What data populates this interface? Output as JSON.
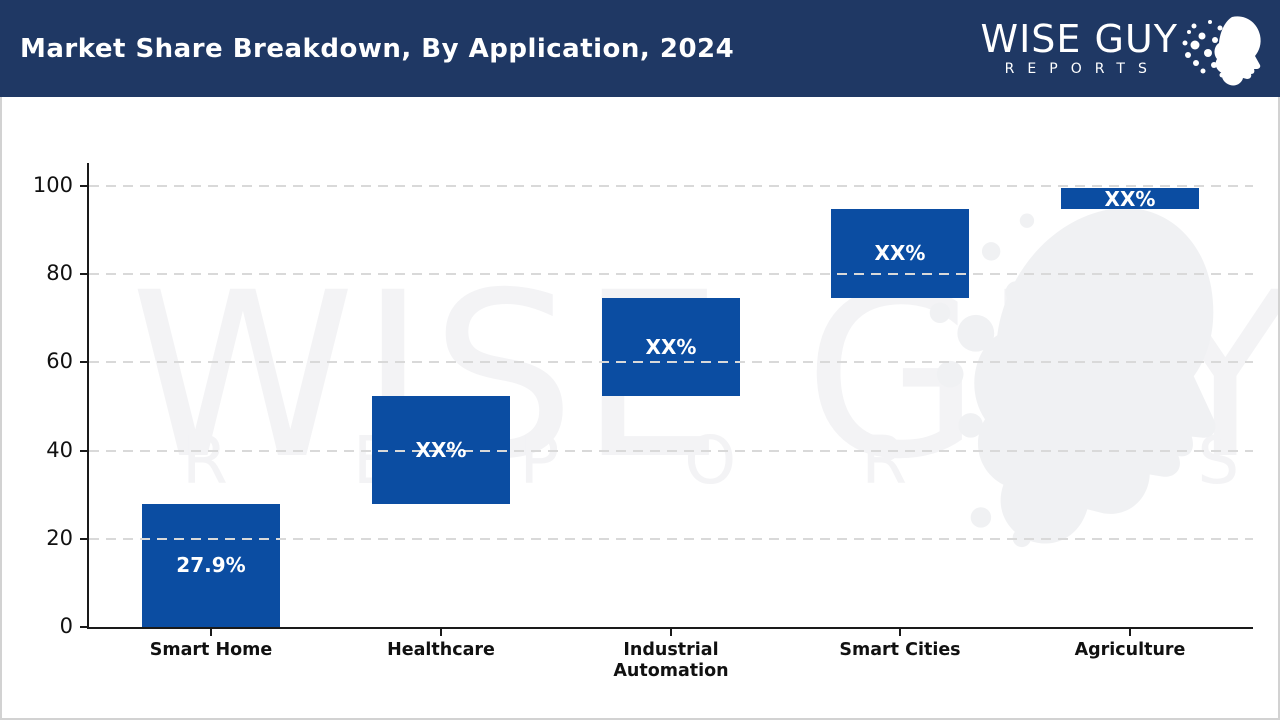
{
  "header": {
    "title": "Market Share Breakdown, By Application, 2024",
    "bg_color": "#1f3864",
    "logo": {
      "wordmark": "WISE GUY",
      "subtext": "REPORTS"
    }
  },
  "watermark": {
    "wordmark": "WISE GUY",
    "subtext": "R E P O R T S"
  },
  "chart_data": {
    "type": "bar",
    "subtype": "waterfall",
    "title": "Market Share Breakdown, By Application, 2024",
    "categories": [
      "Smart Home",
      "Healthcare",
      "Industrial\nAutomation",
      "Smart Cities",
      "Agriculture"
    ],
    "values": [
      27.9,
      24.4,
      22.4,
      20.0,
      4.9
    ],
    "cumulative_start": [
      0,
      27.9,
      52.3,
      74.7,
      94.7
    ],
    "cumulative_end": [
      27.9,
      52.3,
      74.7,
      94.7,
      99.6
    ],
    "bar_labels": [
      "27.9%",
      "XX%",
      "XX%",
      "XX%",
      "XX%"
    ],
    "yticks": [
      0,
      20,
      40,
      60,
      80,
      100
    ],
    "ylim": [
      0,
      105
    ],
    "xlabel": "",
    "ylabel": "",
    "bar_color": "#0b4da2",
    "label_color": "#ffffff",
    "grid": {
      "axis": "y",
      "style": "dashed",
      "color": "#d9d9d9"
    },
    "legend": "none"
  }
}
